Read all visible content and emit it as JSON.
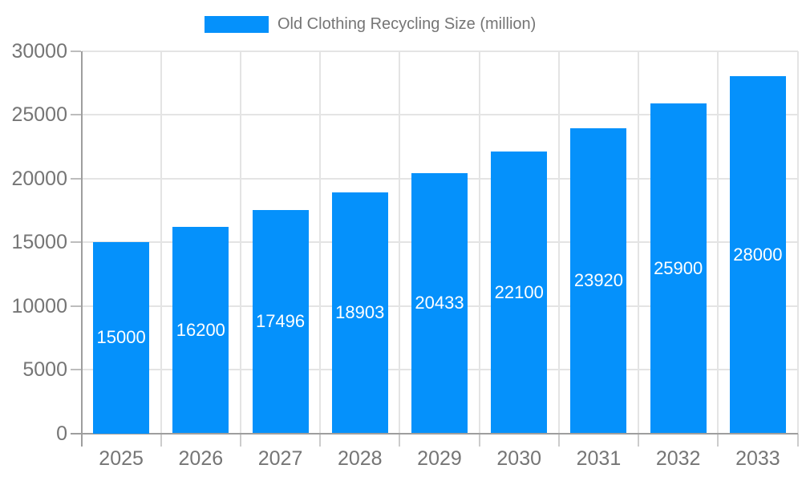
{
  "chart_data": {
    "type": "bar",
    "legend": "Old Clothing Recycling Size (million)",
    "legend_position": "top",
    "categories": [
      "2025",
      "2026",
      "2027",
      "2028",
      "2029",
      "2030",
      "2031",
      "2032",
      "2033"
    ],
    "values": [
      15000,
      16200,
      17496,
      18903,
      20433,
      22100,
      23920,
      25900,
      28000
    ],
    "series": [
      {
        "name": "Old Clothing Recycling Size (million)",
        "values": [
          15000,
          16200,
          17496,
          18903,
          20433,
          22100,
          23920,
          25900,
          28000
        ]
      }
    ],
    "title": "",
    "xlabel": "",
    "ylabel": "",
    "ylim": [
      0,
      30000
    ],
    "yticks": [
      0,
      5000,
      10000,
      15000,
      20000,
      25000,
      30000
    ],
    "grid": true,
    "value_labels": "inside-middle",
    "colors": {
      "bar": "#0591fb",
      "bar_value_label": "#ffffff",
      "axis_text": "#757575",
      "legend_text": "#757575",
      "gridline": "#e4e4e4",
      "axis_line": "#9e9e9e",
      "background": "#ffffff"
    }
  }
}
